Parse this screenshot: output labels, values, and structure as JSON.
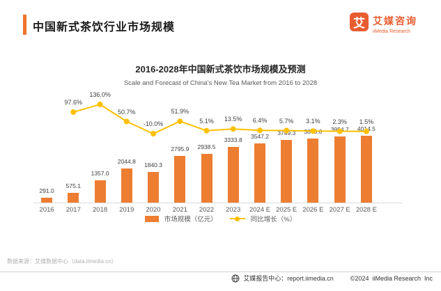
{
  "page": {
    "title": "中国新式茶饮行业市场规模"
  },
  "brand": {
    "logo_char": "艾",
    "name_cn": "艾媒咨询",
    "name_en": "iiMedia Research"
  },
  "chart_data": {
    "type": "bar+line",
    "title": "2016-2028年中国新式茶饮市场规模及预测",
    "subtitle": "Scale and Forecast of China's New Tea Market from 2016 to 2028",
    "categories": [
      "2016",
      "2017",
      "2018",
      "2019",
      "2020",
      "2021",
      "2022",
      "2023",
      "2024 E",
      "2025 E",
      "2026 E",
      "2027 E",
      "2028 E"
    ],
    "series": [
      {
        "name": "市场规模（亿元）",
        "type": "bar",
        "color": "#ED7D31",
        "values": [
          291.0,
          575.1,
          1357.0,
          2044.8,
          1840.3,
          2795.9,
          2938.5,
          3333.8,
          3547.2,
          3749.3,
          3865.6,
          3954.7,
          4014.5
        ],
        "labels": [
          "291.0",
          "575.1",
          "1357.0",
          "2044.8",
          "1840.3",
          "2795.9",
          "2938.5",
          "3333.8",
          "3547.2",
          "3749.3",
          "3865.6",
          "3954.7",
          "4014.5"
        ]
      },
      {
        "name": "同比增长（%）",
        "type": "line",
        "color": "#FFC000",
        "values": [
          null,
          97.6,
          136.0,
          50.7,
          -10.0,
          51.9,
          5.1,
          13.5,
          6.4,
          5.7,
          3.1,
          2.3,
          1.5
        ],
        "labels": [
          "",
          "97.6%",
          "136.0%",
          "50.7%",
          "-10.0%",
          "51.9%",
          "5.1%",
          "13.5%",
          "6.4%",
          "5.7%",
          "3.1%",
          "2.3%",
          "1.5%"
        ]
      }
    ],
    "legend_position": "bottom",
    "grid": false,
    "bar_ylim": [
      0,
      4200
    ],
    "line_ylim": [
      -40,
      170
    ]
  },
  "source": "数据来源：艾媒数据中心（data.iimedia.cn）",
  "footer": {
    "report_center": "艾媒报告中心：report.iimedia.cn",
    "copyright": "©2024  iiMedia Research  Inc"
  }
}
